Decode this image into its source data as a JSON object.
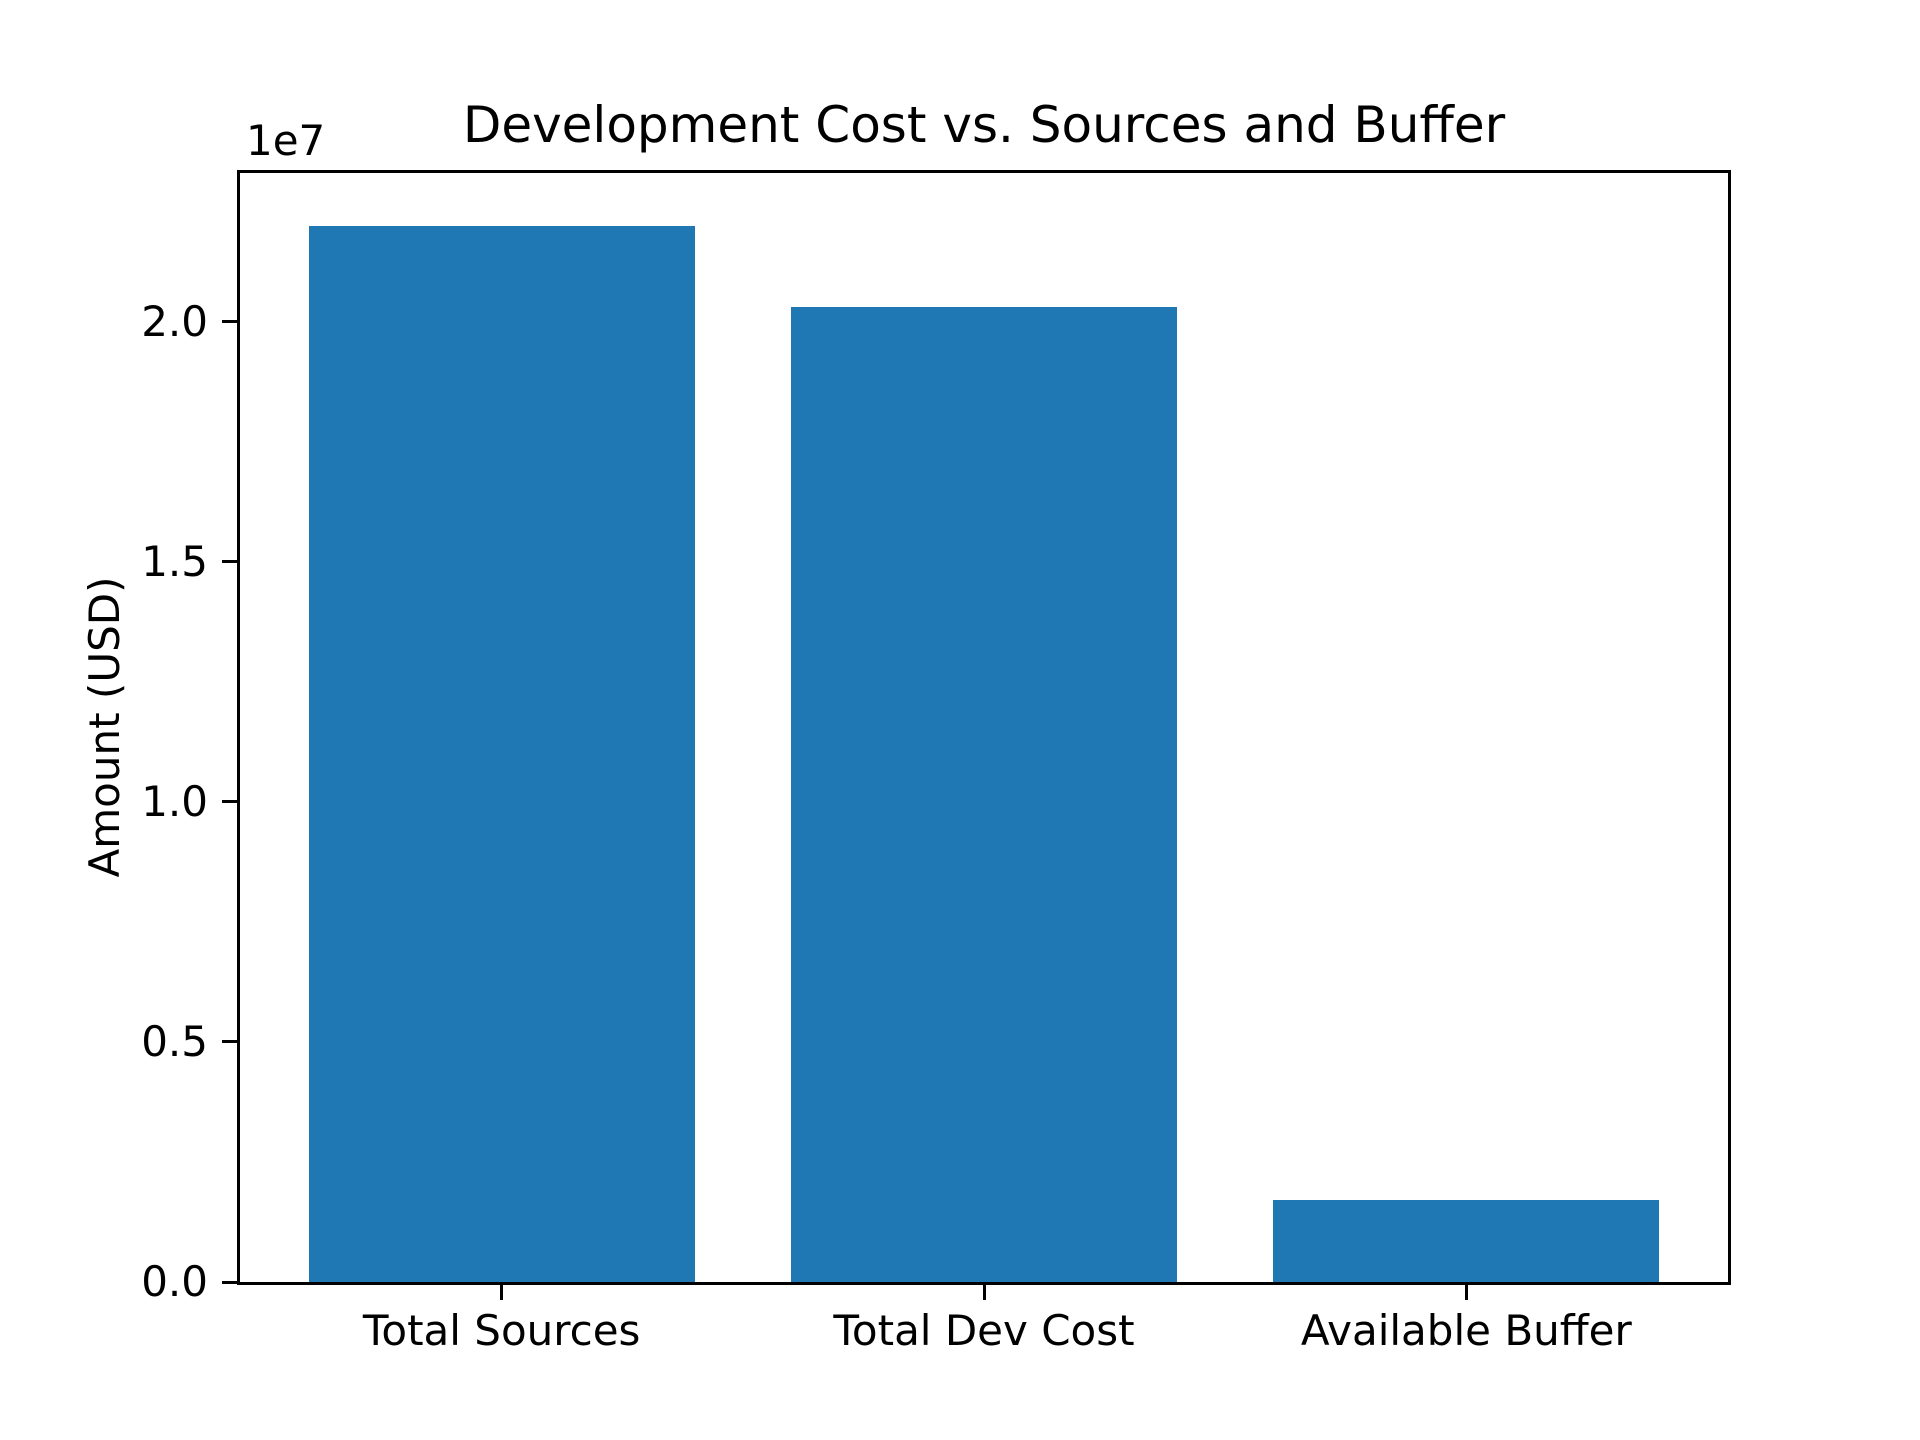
{
  "chart_data": {
    "type": "bar",
    "title": "Development Cost vs. Sources and Buffer",
    "ylabel": "Amount (USD)",
    "xlabel": "",
    "offset_text": "1e7",
    "categories": [
      "Total Sources",
      "Total Dev Cost",
      "Available Buffer"
    ],
    "values": [
      22000000,
      20300000,
      1700000
    ],
    "bar_color": "#1f77b4",
    "axis_color": "#000000",
    "background_color": "#ffffff",
    "ylim": [
      0,
      23100000
    ],
    "xlim": [
      -0.5425,
      2.5425
    ],
    "bar_width": 0.8,
    "yticks": [
      0,
      5000000,
      10000000,
      15000000,
      20000000
    ],
    "ytick_labels": [
      "0.0",
      "0.5",
      "1.0",
      "1.5",
      "2.0"
    ],
    "grid": false,
    "legend_position": "none"
  }
}
